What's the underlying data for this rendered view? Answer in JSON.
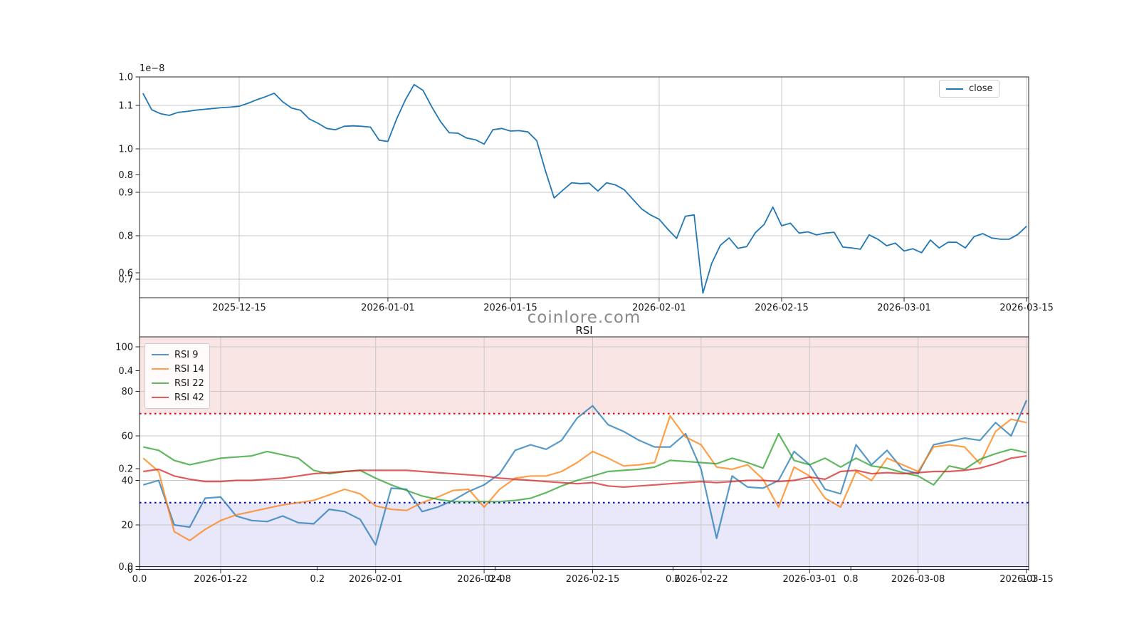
{
  "watermark": "coinlore.com",
  "overlay_axis": {
    "x_tick_labels": [
      "0.0",
      "0.2",
      "0.4",
      "0.6",
      "0.8",
      "1.0"
    ],
    "y_tick_labels": [
      "1.0",
      "0.8",
      "0.6",
      "0.4",
      "0.2",
      "0.0"
    ]
  },
  "chart_data": [
    {
      "type": "line",
      "title": "",
      "legend": [
        "close"
      ],
      "legend_position": "upper right",
      "y_offset_label": "1e−8",
      "y_unit_note": "values are ×1e-8",
      "grid": true,
      "x_tick_labels": [
        "2025-12-15",
        "2026-01-01",
        "2026-01-15",
        "2026-02-01",
        "2026-02-15",
        "2026-03-01",
        "2026-03-15"
      ],
      "y_tick_labels": [
        "1.1",
        "1.0",
        "0.9",
        "0.8",
        "0.7"
      ],
      "ylim_approx": [
        0.657,
        1.166
      ],
      "series": [
        {
          "name": "close",
          "color": "#1f77b4",
          "start_date": "2025-12-04",
          "interval": "daily",
          "values": [
            1.128,
            1.09,
            1.081,
            1.077,
            1.084,
            1.086,
            1.089,
            1.091,
            1.093,
            1.095,
            1.096,
            1.098,
            1.105,
            1.113,
            1.12,
            1.128,
            1.108,
            1.094,
            1.089,
            1.069,
            1.059,
            1.047,
            1.044,
            1.052,
            1.053,
            1.052,
            1.05,
            1.02,
            1.017,
            1.069,
            1.113,
            1.148,
            1.135,
            1.097,
            1.063,
            1.037,
            1.036,
            1.025,
            1.021,
            1.011,
            1.044,
            1.047,
            1.041,
            1.042,
            1.039,
            1.019,
            0.95,
            0.887,
            0.905,
            0.922,
            0.92,
            0.921,
            0.903,
            0.922,
            0.917,
            0.906,
            0.884,
            0.862,
            0.848,
            0.838,
            0.815,
            0.794,
            0.845,
            0.848,
            0.668,
            0.736,
            0.778,
            0.795,
            0.771,
            0.775,
            0.807,
            0.826,
            0.866,
            0.823,
            0.829,
            0.806,
            0.809,
            0.802,
            0.806,
            0.808,
            0.774,
            0.772,
            0.769,
            0.802,
            0.792,
            0.777,
            0.783,
            0.765,
            0.77,
            0.761,
            0.79,
            0.772,
            0.785,
            0.785,
            0.772,
            0.798,
            0.805,
            0.795,
            0.792,
            0.792,
            0.803,
            0.822
          ]
        }
      ]
    },
    {
      "type": "line",
      "title": "RSI",
      "legend": [
        "RSI 9",
        "RSI 14",
        "RSI 22",
        "RSI 42"
      ],
      "legend_position": "upper left",
      "grid": true,
      "x_tick_labels": [
        "2026-01-22",
        "2026-02-01",
        "2026-02-08",
        "2026-02-15",
        "2026-02-22",
        "2026-03-01",
        "2026-03-08",
        "2026-03-15"
      ],
      "y_tick_labels": [
        "100",
        "80",
        "60",
        "40",
        "20",
        "0"
      ],
      "ylim": [
        0,
        104.5
      ],
      "overbought_level": 70,
      "oversold_level": 30,
      "zone_colors": {
        "overbought_fill": "rgba(214,39,40,0.12)",
        "oversold_fill": "rgba(80,80,214,0.13)",
        "overbought_line": "#dc0013",
        "oversold_line": "#0000cc"
      },
      "series": [
        {
          "name": "RSI 9",
          "color": "#1f77b4",
          "start_date": "2026-01-17",
          "interval": "daily",
          "values": [
            38,
            40,
            20,
            19,
            32,
            32.5,
            24,
            22,
            21.5,
            24,
            21,
            20.5,
            27,
            26,
            22.5,
            11,
            36.5,
            36,
            26,
            28,
            31,
            35,
            38,
            43,
            53.5,
            56,
            54,
            58,
            68,
            73.5,
            65,
            62,
            58,
            55,
            55,
            61,
            45,
            14,
            42,
            37,
            36.5,
            40,
            53,
            47,
            36,
            34,
            56,
            47,
            53.5,
            45,
            43,
            56,
            57.5,
            59,
            58,
            66,
            60,
            76
          ]
        },
        {
          "name": "RSI 14",
          "color": "#ff7f0e",
          "start_date": "2026-01-17",
          "interval": "daily",
          "values": [
            50,
            44,
            17,
            13,
            18,
            22,
            24.5,
            26,
            27.5,
            29,
            30,
            31,
            33.5,
            36,
            34,
            28.5,
            27,
            26.5,
            30,
            32.5,
            35.5,
            36,
            28,
            36,
            41,
            42,
            42,
            44,
            48,
            53,
            50,
            46.5,
            47,
            48,
            69,
            59.5,
            56,
            46,
            45,
            47,
            40.5,
            28,
            46,
            42,
            32,
            28,
            44,
            40,
            50,
            47,
            44,
            55,
            56,
            55,
            47.5,
            62,
            67.5,
            66
          ]
        },
        {
          "name": "RSI 22",
          "color": "#2ca02c",
          "start_date": "2026-01-17",
          "interval": "daily",
          "values": [
            55,
            53.5,
            49,
            47,
            48.5,
            50,
            50.5,
            51,
            53,
            51.5,
            50,
            44.5,
            43,
            44,
            44.5,
            41,
            38,
            35.5,
            33,
            31.5,
            30.5,
            30.5,
            30.5,
            30.5,
            31,
            32,
            34.5,
            37.5,
            40,
            42,
            44,
            44.5,
            45,
            46,
            49,
            48.5,
            48,
            47.5,
            50,
            48,
            45.5,
            61,
            49,
            47,
            50,
            46,
            50,
            46.5,
            45.5,
            43.5,
            42,
            38,
            46.5,
            45,
            49.5,
            52,
            54,
            52.5
          ]
        },
        {
          "name": "RSI 42",
          "color": "#d62728",
          "start_date": "2026-01-17",
          "interval": "daily",
          "values": [
            44,
            45,
            42,
            40.5,
            39.5,
            39.5,
            40,
            40,
            40.5,
            41,
            42,
            43,
            43.5,
            44,
            44.5,
            44.5,
            44.5,
            44.5,
            44,
            43.5,
            43,
            42.5,
            42,
            41,
            40.5,
            40,
            39.5,
            39,
            38.5,
            39,
            37.5,
            37,
            37.5,
            38,
            38.5,
            39,
            39.5,
            39,
            39.5,
            40,
            40,
            39.5,
            40,
            41.5,
            40.5,
            44,
            44.5,
            43,
            43.5,
            43,
            43.5,
            44,
            44,
            44.5,
            45.5,
            47.5,
            50,
            51
          ]
        }
      ]
    }
  ]
}
